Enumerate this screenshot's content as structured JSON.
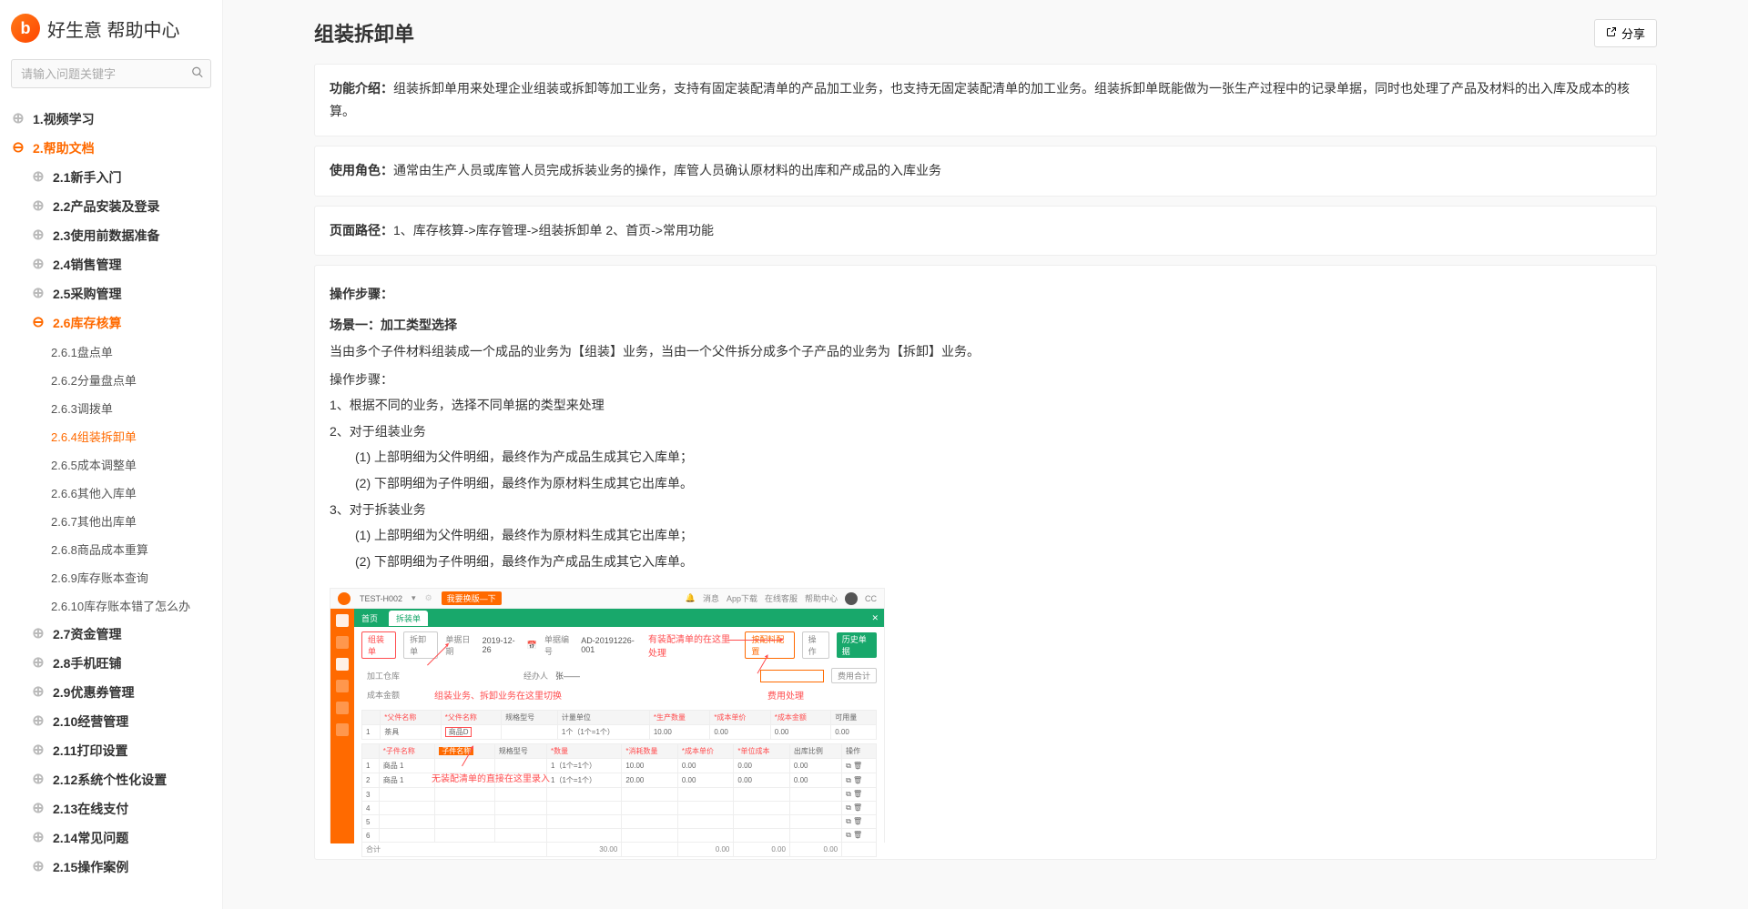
{
  "header": {
    "logo_text": "好生意 帮助中心",
    "search_placeholder": "请输入问题关键字"
  },
  "sidebar": {
    "top": [
      {
        "label": "1.视频学习",
        "expand": "plus"
      },
      {
        "label": "2.帮助文档",
        "expand": "minus",
        "active": true
      }
    ],
    "docs": [
      {
        "label": "2.1新手入门",
        "expand": "plus"
      },
      {
        "label": "2.2产品安装及登录",
        "expand": "plus"
      },
      {
        "label": "2.3使用前数据准备",
        "expand": "plus"
      },
      {
        "label": "2.4销售管理",
        "expand": "plus"
      },
      {
        "label": "2.5采购管理",
        "expand": "plus"
      },
      {
        "label": "2.6库存核算",
        "expand": "minus",
        "active": true
      }
    ],
    "inventory": [
      {
        "label": "2.6.1盘点单"
      },
      {
        "label": "2.6.2分量盘点单"
      },
      {
        "label": "2.6.3调拨单"
      },
      {
        "label": "2.6.4组装拆卸单",
        "active": true
      },
      {
        "label": "2.6.5成本调整单"
      },
      {
        "label": "2.6.6其他入库单"
      },
      {
        "label": "2.6.7其他出库单"
      },
      {
        "label": "2.6.8商品成本重算"
      },
      {
        "label": "2.6.9库存账本查询"
      },
      {
        "label": "2.6.10库存账本错了怎么办"
      }
    ],
    "docs_after": [
      {
        "label": "2.7资金管理",
        "expand": "plus"
      },
      {
        "label": "2.8手机旺铺",
        "expand": "plus"
      },
      {
        "label": "2.9优惠券管理",
        "expand": "plus"
      },
      {
        "label": "2.10经营管理",
        "expand": "plus"
      },
      {
        "label": "2.11打印设置",
        "expand": "plus"
      },
      {
        "label": "2.12系统个性化设置",
        "expand": "plus"
      },
      {
        "label": "2.13在线支付",
        "expand": "plus"
      },
      {
        "label": "2.14常见问题",
        "expand": "plus"
      },
      {
        "label": "2.15操作案例",
        "expand": "plus"
      }
    ]
  },
  "page": {
    "title": "组装拆卸单",
    "share_label": "分享",
    "intro_label": "功能介绍：",
    "intro_text": "组装拆卸单用来处理企业组装或拆卸等加工业务，支持有固定装配清单的产品加工业务，也支持无固定装配清单的加工业务。组装拆卸单既能做为一张生产过程中的记录单据，同时也处理了产品及材料的出入库及成本的核算。",
    "role_label": "使用角色：",
    "role_text": "通常由生产人员或库管人员完成拆装业务的操作，库管人员确认原材料的出库和产成品的入库业务",
    "path_label": "页面路径：",
    "path_text": "1、库存核算->库存管理->组装拆卸单 2、首页->常用功能",
    "steps_label": "操作步骤：",
    "scene1_label": "场景一：加工类型选择",
    "scene1_text": "当由多个子件材料组装成一个成品的业务为【组装】业务，当由一个父件拆分成多个子产品的业务为【拆卸】业务。",
    "ops_label": "操作步骤：",
    "p1": "1、根据不同的业务，选择不同单据的类型来处理",
    "p2": "2、对于组装业务",
    "p21": "(1) 上部明细为父件明细，最终作为产成品生成其它入库单；",
    "p22": "(2) 下部明细为子件明细，最终作为原材料生成其它出库单。",
    "p3": "3、对于拆装业务",
    "p31": "(1) 上部明细为父件明细，最终作为原材料生成其它出库单；",
    "p32": "(2) 下部明细为子件明细，最终作为产成品生成其它入库单。"
  },
  "screenshot": {
    "account": "TEST-H002",
    "upgrade": "我要换版—下",
    "top_msg": "消息",
    "top_app": "App下载",
    "top_online": "在线客服",
    "top_help": "帮助中心",
    "user": "CC",
    "tab_home": "首页",
    "tab_form": "拆装单",
    "btn_zz": "组装单",
    "btn_cx": "拆卸单",
    "date_label": "单据日期",
    "date_val": "2019-12-26",
    "code_label": "单据编号",
    "code_val": "AD-20191226-001",
    "anno1": "有装配清单的在这里处理",
    "btn_pz": "按配料配置",
    "btn_op": "操作",
    "btn_hist": "历史单据",
    "wh_label": "加工仓库",
    "op_label": "经办人",
    "op_val": "张——",
    "anno2": "组装业务、拆卸业务在这里切换",
    "fee_label": "费用合计",
    "anno3": "费用处理",
    "anno4": "无装配清单的直接在这里录入",
    "parent_cols": [
      "",
      "*父件名称",
      "*父件名称",
      "规格型号",
      "计量单位",
      "*生产数量",
      "*成本单价",
      "*成本金额",
      "可用量"
    ],
    "parent_row": [
      "1",
      "茶具",
      "商品D",
      "",
      "1个（1个=1个）",
      "10.00",
      "0.00",
      "0.00",
      "0.00"
    ],
    "child_cols": [
      "",
      "*子件名称",
      "子件名称",
      "规格型号",
      "*数量",
      "*消耗数量",
      "*成本单价",
      "*单位成本",
      "出库比例"
    ],
    "child_rows": [
      [
        "1",
        "商品 1",
        "",
        "",
        "1（1个=1个）",
        "10.00",
        "0.00",
        "0.00",
        "0.00"
      ],
      [
        "2",
        "商品 1",
        "",
        "",
        "1（1个=1个）",
        "20.00",
        "0.00",
        "0.00",
        "0.00"
      ],
      [
        "3",
        "",
        "",
        "",
        "",
        "",
        "",
        "",
        ""
      ],
      [
        "4",
        "",
        "",
        "",
        "",
        "",
        "",
        "",
        ""
      ],
      [
        "5",
        "",
        "",
        "",
        "",
        "",
        "",
        "",
        ""
      ],
      [
        "6",
        "",
        "",
        "",
        "",
        "",
        "",
        "",
        ""
      ]
    ],
    "sum_label": "合计",
    "sum_qty": "30.00",
    "sum_v1": "0.00",
    "sum_v2": "0.00",
    "sum_v3": "0.00",
    "op_col": "操作"
  }
}
